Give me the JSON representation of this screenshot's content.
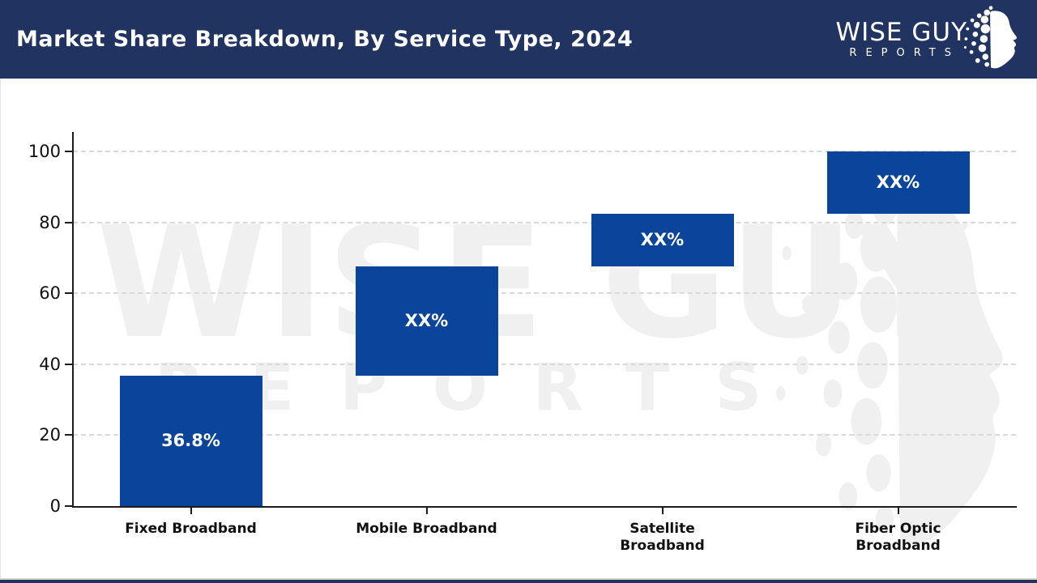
{
  "header": {
    "title": "Market Share Breakdown, By Service Type, 2024",
    "logo": {
      "line1": "WISE GUY",
      "line2": "REPORTS"
    }
  },
  "watermark": {
    "line1": "WISE GUY",
    "line2": "REPORTS"
  },
  "colors": {
    "header_bg": "#213461",
    "footer_bg": "#213461",
    "bar": "#0a459b",
    "bar_label": "#ffffff",
    "axis": "#1c1c1c",
    "tick_label": "#111111",
    "grid": "#d9d9d9",
    "watermark": "#f0f0f0",
    "hairline": "#d6d6d6",
    "border": "#e4e4e4",
    "page_bg": "#ffffff"
  },
  "chart_data": {
    "type": "bar",
    "subtype": "waterfall",
    "title": "Market Share Breakdown, By Service Type, 2024",
    "xlabel": "",
    "ylabel": "",
    "ylim": [
      0,
      100
    ],
    "yticks": [
      0,
      20,
      40,
      60,
      80,
      100
    ],
    "grid": "horizontal-dashed",
    "legend": "none",
    "categories": [
      "Fixed Broadband",
      "Mobile Broadband",
      "Satellite Broadband",
      "Fiber Optic Broadband"
    ],
    "segments": [
      {
        "category": "Fixed Broadband",
        "category_lines": [
          "Fixed Broadband"
        ],
        "start": 0,
        "end": 36.8,
        "label": "36.8%"
      },
      {
        "category": "Mobile Broadband",
        "category_lines": [
          "Mobile Broadband"
        ],
        "start": 36.8,
        "end": 67.6,
        "label": "XX%"
      },
      {
        "category": "Satellite Broadband",
        "category_lines": [
          "Satellite",
          "Broadband"
        ],
        "start": 67.6,
        "end": 82.5,
        "label": "XX%"
      },
      {
        "category": "Fiber Optic Broadband",
        "category_lines": [
          "Fiber Optic",
          "Broadband"
        ],
        "start": 82.5,
        "end": 100,
        "label": "XX%"
      }
    ]
  }
}
